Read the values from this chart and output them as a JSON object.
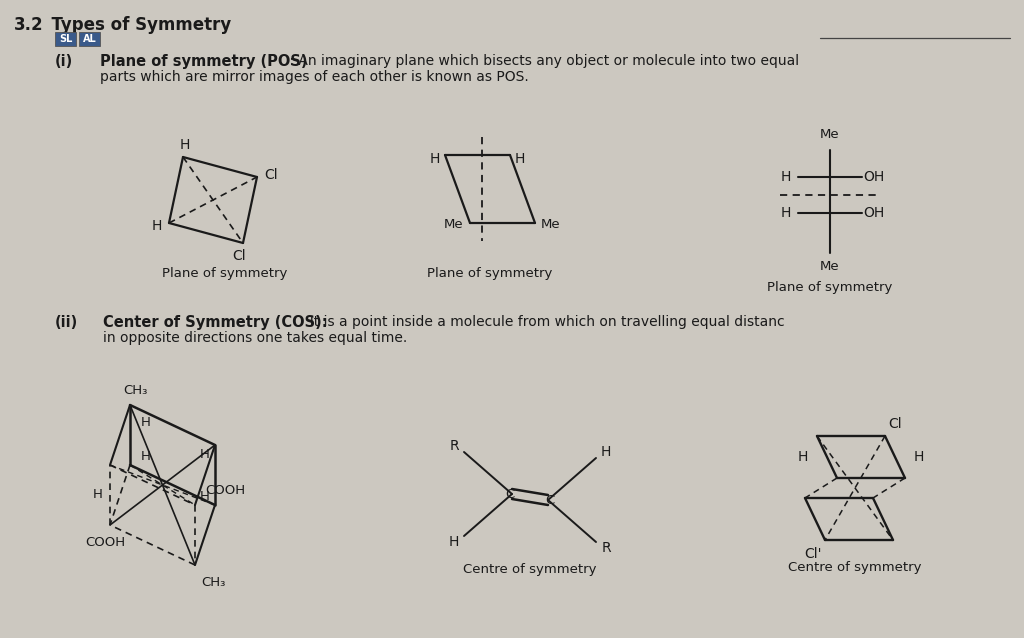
{
  "bg_color": "#ccc8c0",
  "title_num": "3.2",
  "title_text": "  Types of Symmetry",
  "sl_color": "#3a5a8a",
  "al_color": "#3a5a8a",
  "heading_i_bold": "Plane of symmetry (POS)",
  "heading_i_normal": " : An imaginary plane which bisects any object or molecule into two equal",
  "text_i_2": "parts which are mirror images of each other is known as POS.",
  "heading_ii_bold": "Center of Symmetry (COS):",
  "heading_ii_normal": "  It is a point inside a molecule from which on travelling equal distanc",
  "text_ii_2": "in opposite directions one takes equal time.",
  "label_pos1": "Plane of symmetry",
  "label_pos2": "Plane of symmetry",
  "label_pos3": "Plane of symmetry",
  "label_cos1": "Centre of symmetry",
  "label_cos2": "Centre of symmetry"
}
